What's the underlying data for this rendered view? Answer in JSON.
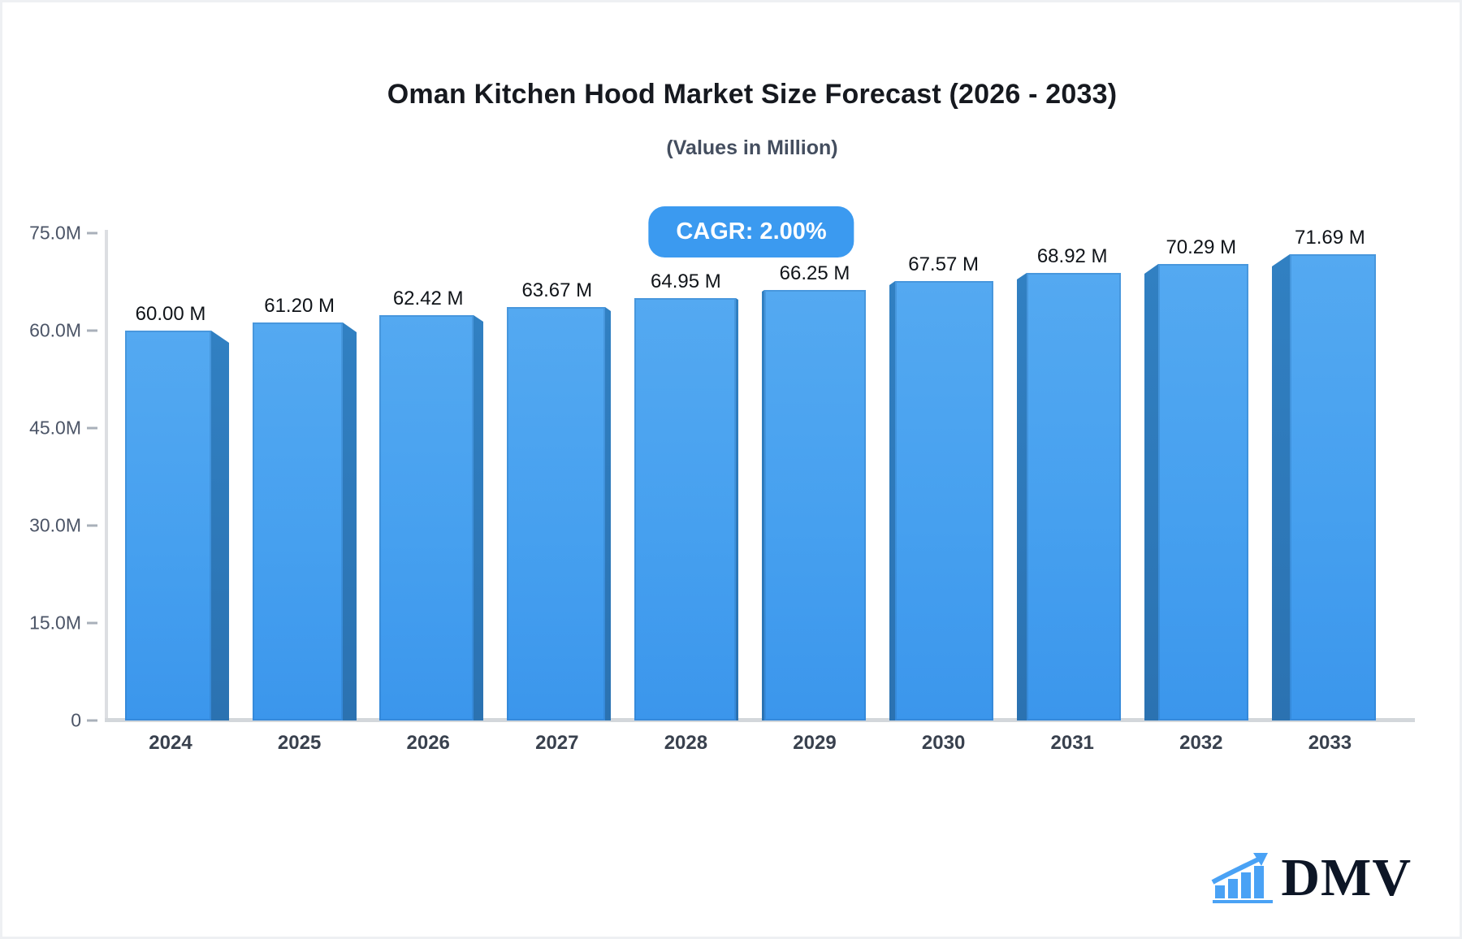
{
  "header": {
    "title": "Oman Kitchen Hood Market Size Forecast (2026 - 2033)",
    "subtitle": "(Values in Million)",
    "cagr_label": "CAGR: 2.00%"
  },
  "brand": {
    "name": "DMV",
    "icon": "bar-chart-growth-icon"
  },
  "colors": {
    "bar_light": "#46a0ef",
    "bar_dark": "#2b72b1",
    "badge_blue": "#3b9af0",
    "axis_gray": "#d3d7db",
    "title_dark": "#16191f",
    "tick_gray": "#4c5567",
    "logo_blue": "#4aa2f5"
  },
  "chart_data": {
    "type": "bar",
    "title": "Oman Kitchen Hood Market Size Forecast (2026 - 2033)",
    "subtitle": "(Values in Million)",
    "xlabel": "",
    "ylabel": "",
    "categories": [
      "2024",
      "2025",
      "2026",
      "2027",
      "2028",
      "2029",
      "2030",
      "2031",
      "2032",
      "2033"
    ],
    "values": [
      60.0,
      61.2,
      62.42,
      63.67,
      64.95,
      66.25,
      67.57,
      68.92,
      70.29,
      71.69
    ],
    "value_labels": [
      "60.00 M",
      "61.20 M",
      "62.42 M",
      "63.67 M",
      "64.95 M",
      "66.25 M",
      "67.57 M",
      "68.92 M",
      "70.29 M",
      "71.69 M"
    ],
    "ytick_labels": [
      "75.0M",
      "60.0M",
      "45.0M",
      "30.0M",
      "15.0M",
      "0"
    ],
    "ytick_values": [
      75,
      60,
      45,
      30,
      15,
      0
    ],
    "ylim": [
      0,
      75
    ],
    "grid": false,
    "legend": false,
    "annotation": "CAGR: 2.00%",
    "bar_style": "3d-perspective"
  }
}
